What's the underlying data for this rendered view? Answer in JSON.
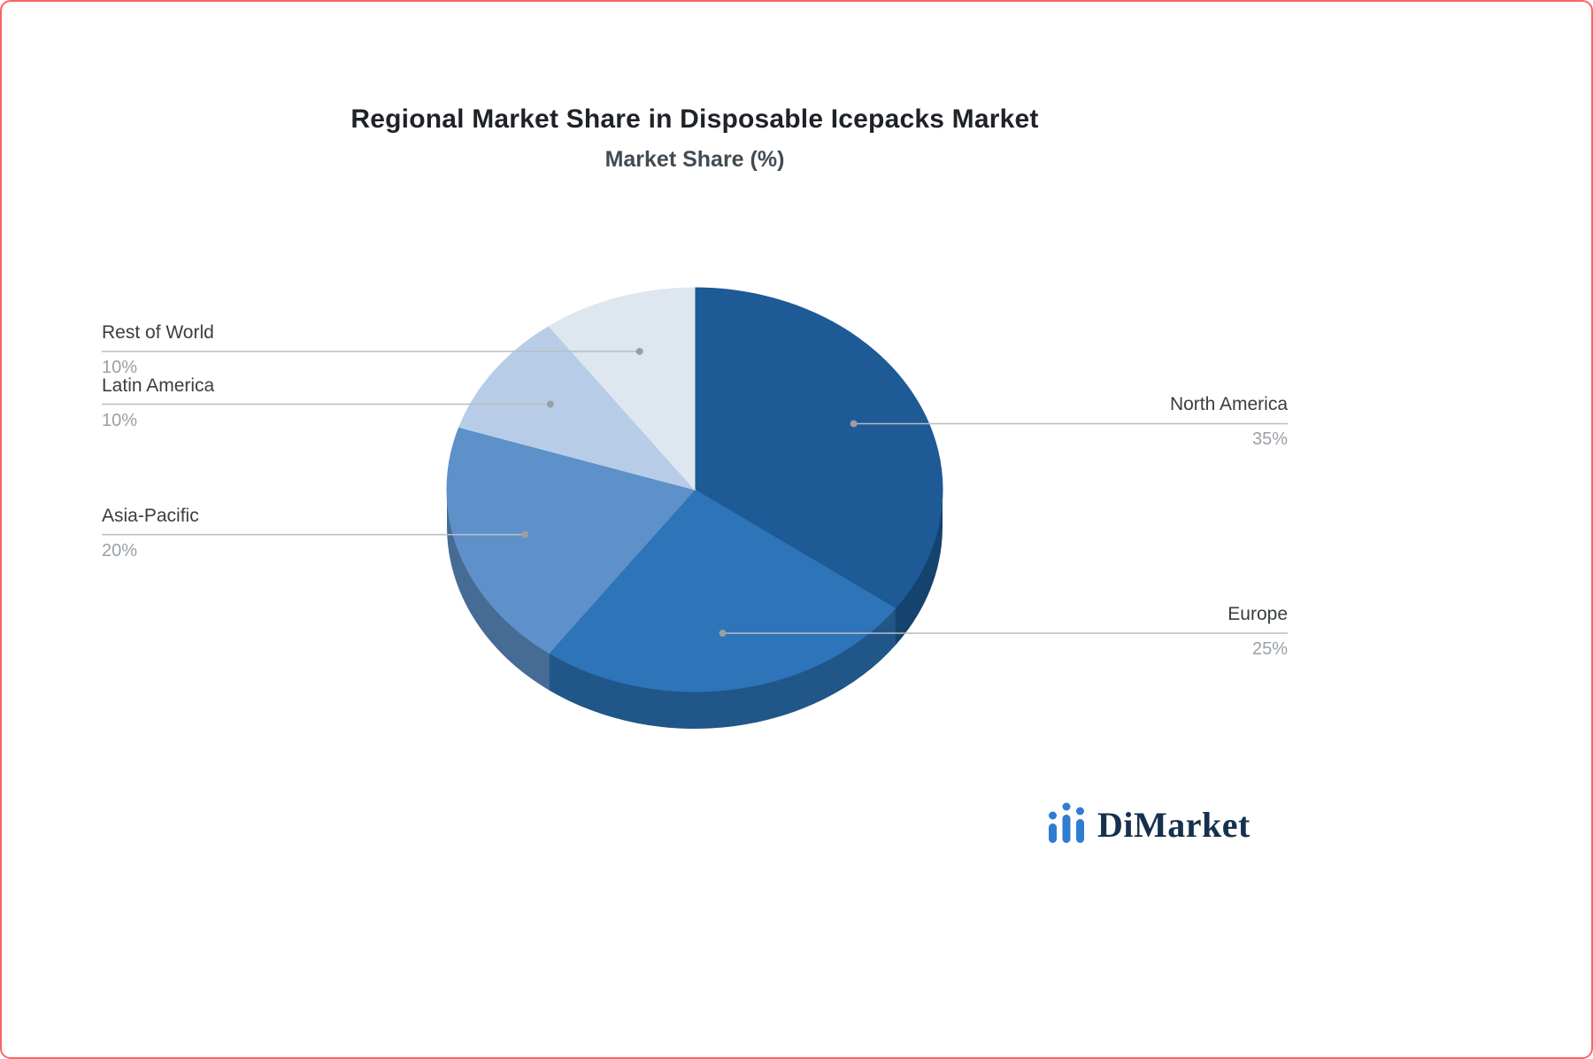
{
  "header": {
    "title": "Regional Market Share in Disposable Icepacks Market",
    "subtitle": "Market Share (%)"
  },
  "chart_data": {
    "type": "pie",
    "style": "3d",
    "title": "Regional Market Share in Disposable Icepacks Market",
    "subtitle": "Market Share (%)",
    "unit": "%",
    "labels": [
      "North America",
      "Europe",
      "Asia-Pacific",
      "Latin America",
      "Rest of World"
    ],
    "values": [
      35,
      25,
      20,
      10,
      10
    ],
    "display_values": [
      "35%",
      "25%",
      "20%",
      "10%",
      "10%"
    ],
    "colors": [
      "#1d5a96",
      "#2d74b9",
      "#5e90c9",
      "#b7cde7",
      "#dee6ef"
    ],
    "start_angle_deg": 0,
    "direction": "clockwise",
    "legend_position": "callout-labels",
    "leader_line_color": "#b9bdc1",
    "leader_dot_color": "#9b9fa4"
  },
  "brand": {
    "name": "DiMarket",
    "logo_icon": "bar-chart-icon",
    "text_color": "#16304e",
    "icon_color": "#2f7cd1"
  }
}
